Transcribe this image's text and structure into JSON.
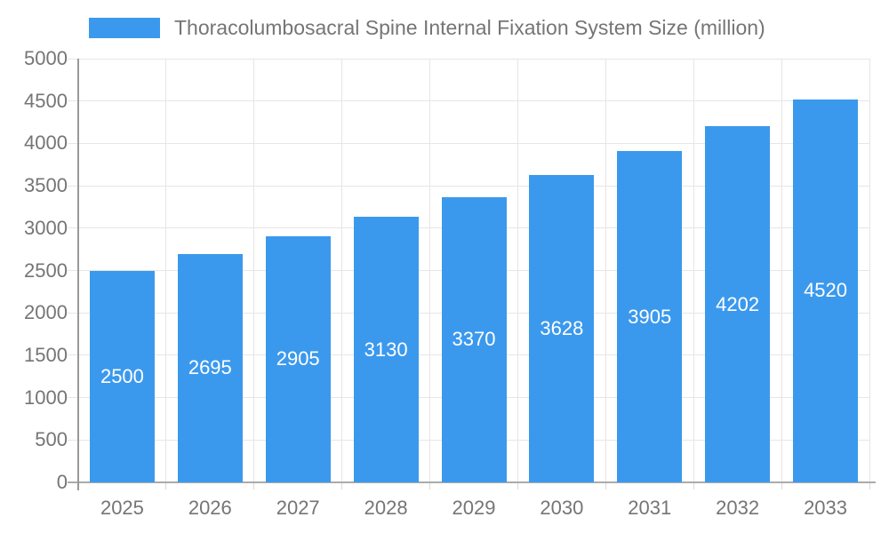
{
  "legend": {
    "label": "Thoracolumbosacral Spine Internal Fixation System Size (million)"
  },
  "chart_data": {
    "type": "bar",
    "title": "Thoracolumbosacral Spine Internal Fixation System Size (million)",
    "categories": [
      "2025",
      "2026",
      "2027",
      "2028",
      "2029",
      "2030",
      "2031",
      "2032",
      "2033"
    ],
    "values": [
      2500,
      2695,
      2905,
      3130,
      3370,
      3628,
      3905,
      4202,
      4520
    ],
    "series_name": "Thoracolumbosacral Spine Internal Fixation System Size (million)",
    "xlabel": "",
    "ylabel": "",
    "ylim": [
      0,
      5000
    ],
    "ytick_step": 500,
    "yticks": [
      0,
      500,
      1000,
      1500,
      2000,
      2500,
      3000,
      3500,
      4000,
      4500,
      5000
    ],
    "grid": "horizontal-and-vertical",
    "legend_position": "top-left",
    "value_labels": "inside-center-white",
    "bar_color": "#3b99ed",
    "value_label_color": "#ffffff",
    "axis_label_color": "#757575",
    "gridline_color": "#e6e6e6",
    "y_axis_line_color": "#999999",
    "x_axis_line_color": "#ababab"
  }
}
